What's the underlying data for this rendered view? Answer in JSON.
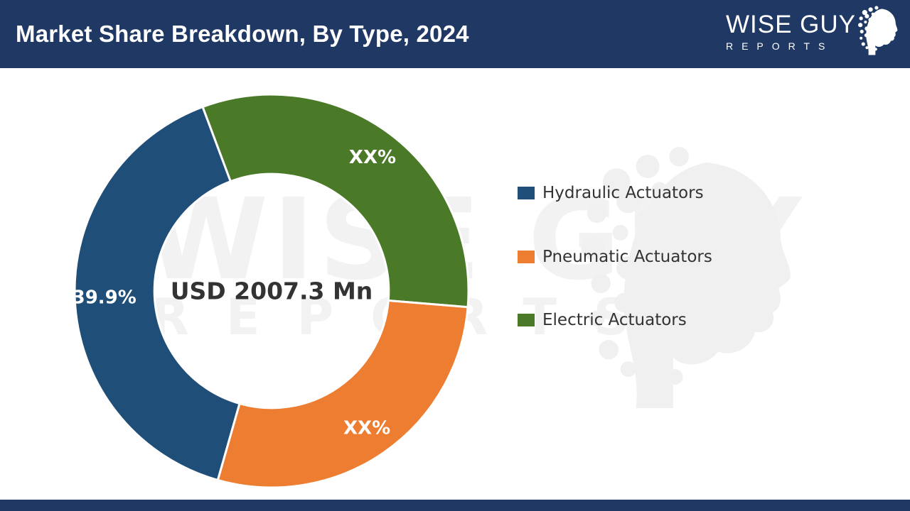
{
  "header": {
    "title": "Market Share Breakdown, By Type, 2024",
    "logo": {
      "name": "WISE GUY",
      "subtitle": "REPORTS"
    }
  },
  "watermark": {
    "line1": "WISE GUY",
    "line2": "REPORTS"
  },
  "chart_data": {
    "type": "donut",
    "title": "Market Share Breakdown, By Type, 2024",
    "center_label": "USD 2007.3 Mn",
    "start_angle_deg": -20.5,
    "direction": "clockwise",
    "inner_radius_ratio": 0.595,
    "label_radius_ratio": 0.85,
    "slices": [
      {
        "label": "Electric Actuators",
        "value": 32.0,
        "display": "XX%",
        "color": "#4a7a28"
      },
      {
        "label": "Pneumatic Actuators",
        "value": 28.1,
        "display": "XX%",
        "color": "#ed7d31"
      },
      {
        "label": "Hydraulic Actuators",
        "value": 39.9,
        "display": "39.9%",
        "color": "#1f4e79"
      }
    ],
    "legend": [
      {
        "label": "Hydraulic Actuators",
        "color": "#1f4e79"
      },
      {
        "label": "Pneumatic Actuators",
        "color": "#ed7d31"
      },
      {
        "label": "Electric Actuators",
        "color": "#4a7a28"
      }
    ],
    "colors": {
      "header_navy": "#1f3864",
      "text_dark": "#333333",
      "watermark_gray": "#f2f2f2"
    }
  }
}
